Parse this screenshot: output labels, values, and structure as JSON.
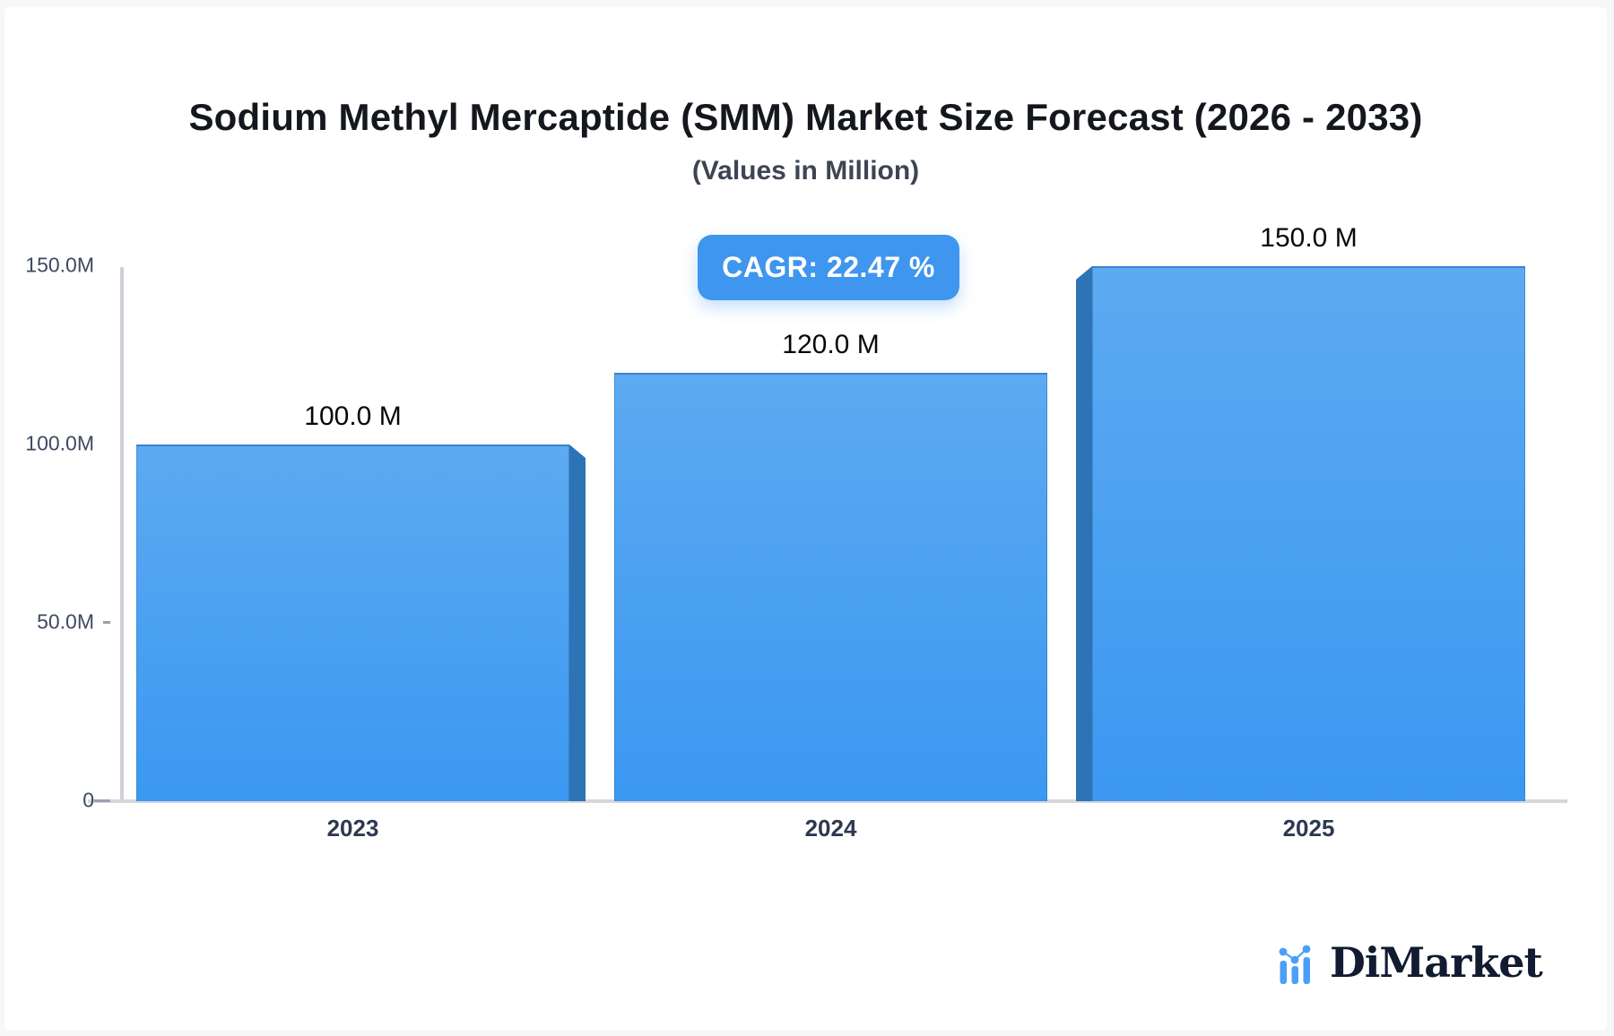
{
  "header": {
    "title": "Sodium Methyl Mercaptide (SMM) Market Size Forecast (2026 - 2033)",
    "subtitle": "(Values in Million)"
  },
  "badge": {
    "label": "CAGR: 22.47 %"
  },
  "watermark": {
    "brand": "DiMarket",
    "icon": "bar-chart-logo-icon"
  },
  "colors": {
    "badge_bg": "#3e96ee",
    "bar_top": "#5caaf1",
    "bar_bottom": "#3b98f1",
    "bar_side": "#2d73b6",
    "axis_line": "#ced1da",
    "baseline": "#d5d7dd",
    "logo_blue": "#4aa0f7"
  },
  "chart_data": {
    "type": "bar",
    "title": "Sodium Methyl Mercaptide (SMM) Market Size Forecast (2026 - 2033)",
    "subtitle": "(Values in Million)",
    "annotation": "CAGR: 22.47 %",
    "categories": [
      "2023",
      "2024",
      "2025"
    ],
    "values": [
      100.0,
      120.0,
      150.0
    ],
    "value_labels": [
      "100.0 M",
      "120.0 M",
      "150.0 M"
    ],
    "unit": "Million",
    "y_ticks": [
      {
        "label": "150.0M",
        "value": 150
      },
      {
        "label": "100.0M",
        "value": 100
      },
      {
        "label": "50.0M",
        "value": 50
      },
      {
        "label": "0",
        "value": 0
      }
    ],
    "ylim": [
      0,
      155
    ],
    "grid": false,
    "legend_position": "none"
  }
}
